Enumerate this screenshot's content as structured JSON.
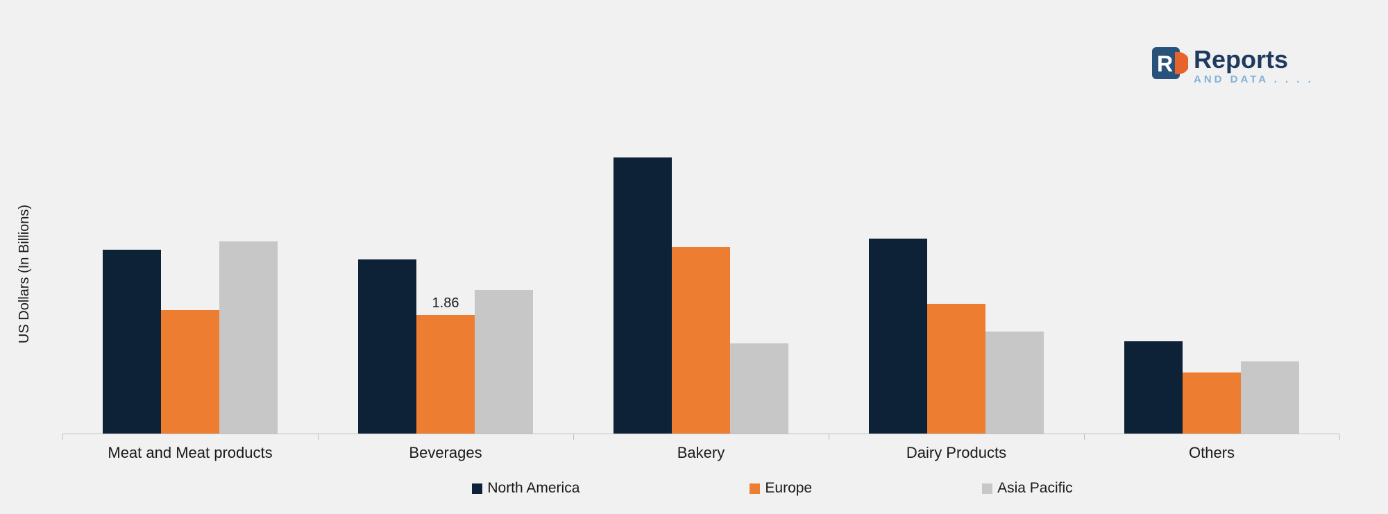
{
  "background_color": "#f1f1f2",
  "logo": {
    "icon_name": "reports-and-data-logo",
    "brand_top": "Reports",
    "brand_bottom": "AND DATA . . . .",
    "colors": {
      "navy": "#1e3a5c",
      "light_blue": "#7fb2d9",
      "orange": "#e8622c",
      "icon_blue": "#29527a"
    }
  },
  "chart_data": {
    "type": "bar",
    "title": "",
    "xlabel": "",
    "ylabel": "US Dollars (In Billions)",
    "ylim": [
      0,
      5
    ],
    "grid": false,
    "legend_position": "bottom",
    "categories": [
      "Meat and Meat products",
      "Beverages",
      "Bakery",
      "Dairy Products",
      "Others"
    ],
    "series": [
      {
        "name": "North America",
        "color": "#0d2137",
        "values": [
          2.88,
          2.73,
          4.33,
          3.05,
          1.45
        ]
      },
      {
        "name": "Europe",
        "color": "#ed7d31",
        "values": [
          1.93,
          1.86,
          2.92,
          2.03,
          0.96
        ]
      },
      {
        "name": "Asia Pacific",
        "color": "#c7c7c7",
        "values": [
          3.01,
          2.25,
          1.41,
          1.6,
          1.13
        ]
      }
    ],
    "data_labels": [
      {
        "series": "Europe",
        "category": "Beverages",
        "value": "1.86"
      }
    ]
  }
}
